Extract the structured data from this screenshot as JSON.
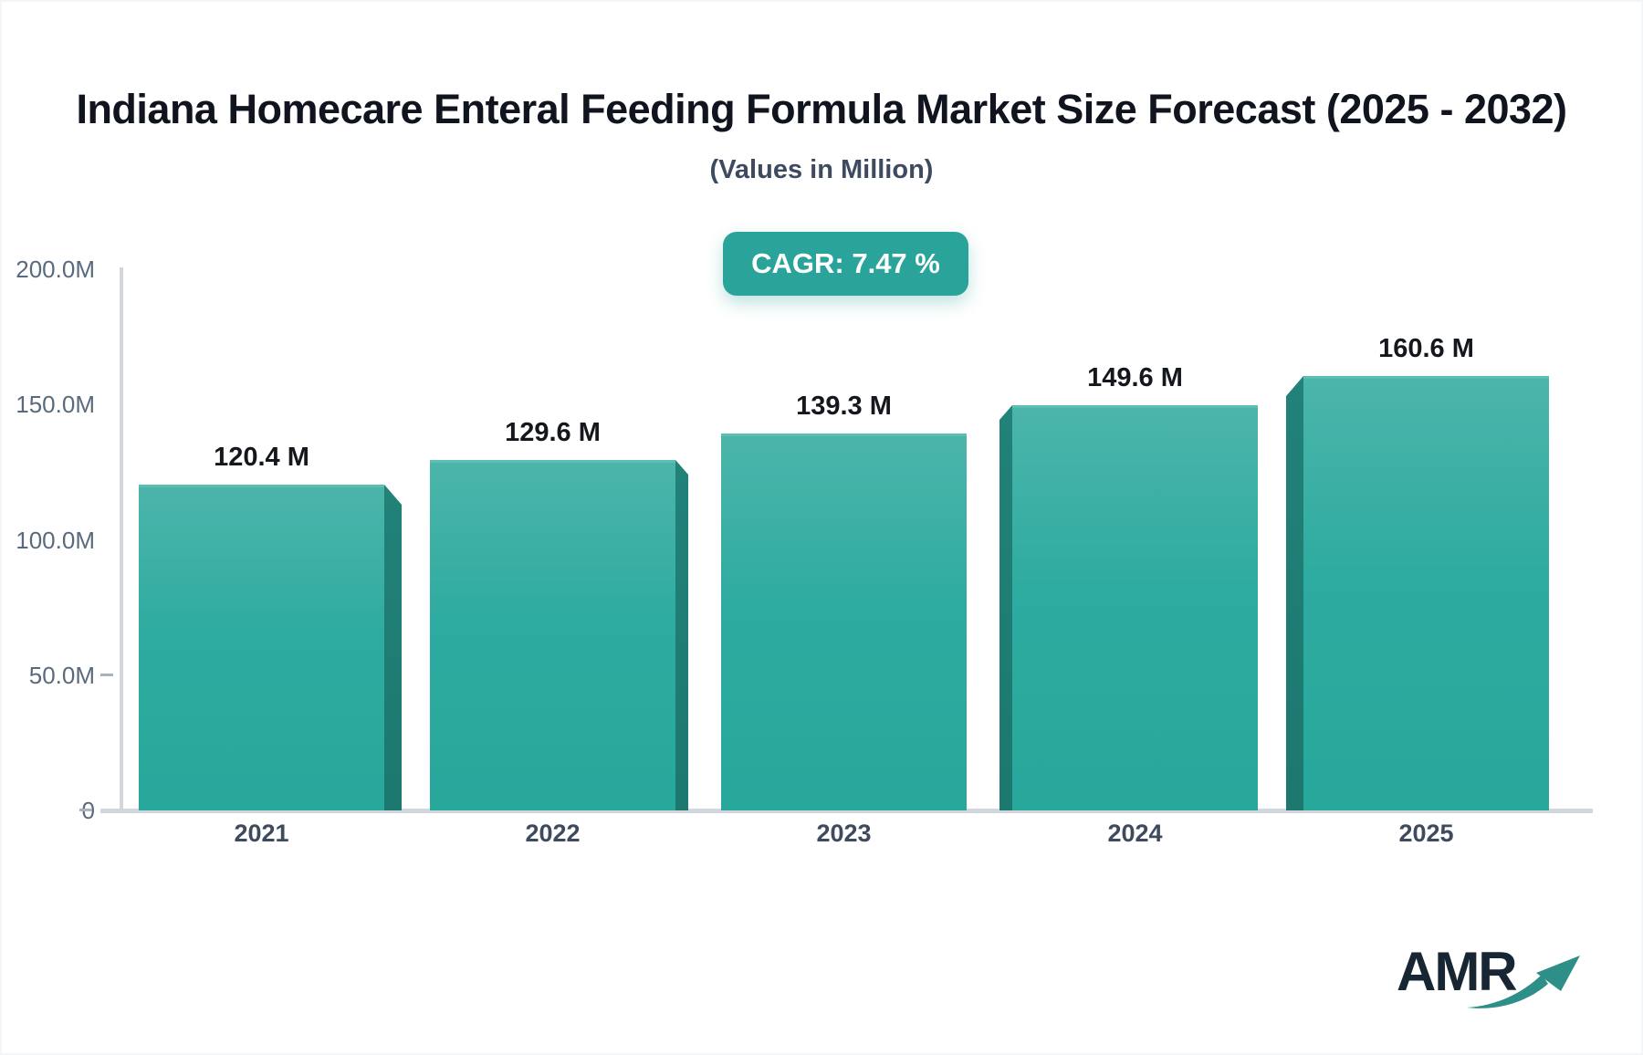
{
  "header": {
    "title": "Indiana Homecare Enteral Feeding Formula Market Size Forecast (2025 - 2032)",
    "subtitle": "(Values in Million)",
    "cagr_label": "CAGR: 7.47 %"
  },
  "chart_data": {
    "type": "bar",
    "title": "Indiana Homecare Enteral Feeding Formula Market Size Forecast (2025 - 2032)",
    "subtitle": "(Values in Million)",
    "categories": [
      "2021",
      "2022",
      "2023",
      "2024",
      "2025"
    ],
    "values": [
      120.4,
      129.6,
      139.3,
      149.6,
      160.6
    ],
    "value_labels": [
      "120.4 M",
      "129.6 M",
      "139.3 M",
      "149.6 M",
      "160.6 M"
    ],
    "unit": "Million",
    "cagr_percent": 7.47,
    "xlabel": "",
    "ylabel": "",
    "ylim": [
      0,
      200
    ],
    "ytick_labels": [
      "200.0M",
      "150.0M",
      "100.0M",
      "50.0M",
      "0"
    ],
    "ytick_values": [
      200,
      150,
      100,
      50,
      0
    ],
    "grid": false,
    "legend": false,
    "style": "3d-perspective-bars"
  },
  "colors": {
    "bar_face_top": "#4cb5aa",
    "bar_face_bottom": "#27a89b",
    "bar_side": "#1f7e76",
    "badge_background": "#2aa49b",
    "badge_text": "#ffffff",
    "axis_line": "#d2d6dd",
    "tick_text": "#5a6a7d",
    "category_text": "#3e4a5e",
    "value_text": "#14181d",
    "title_text": "#10141f",
    "logo_text": "#182633",
    "logo_arrow": "#2e8e88"
  },
  "logo": {
    "text": "AMR"
  }
}
